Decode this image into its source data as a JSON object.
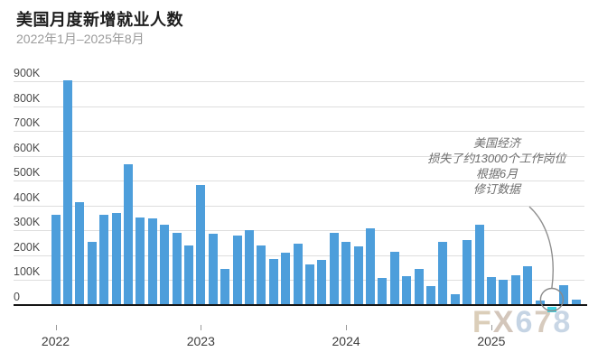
{
  "header": {
    "title": "美国月度新增就业人数",
    "subtitle": "2022年1月–2025年8月"
  },
  "annotation": {
    "lines": [
      "美国经济",
      "损失了约13000个工作岗位",
      "根据6月",
      "修订数据"
    ]
  },
  "watermark": {
    "text": "FX678"
  },
  "colors": {
    "bar": "#4d9edb",
    "highlight": "#3fd2e2",
    "axis": "#161616",
    "grid": "#dedede"
  },
  "chart_data": {
    "type": "bar",
    "title": "美国月度新增就业人数",
    "subtitle": "2022年1月–2025年8月",
    "unit": "jobs, thousands (K)",
    "x": [
      "2022-01",
      "2022-02",
      "2022-03",
      "2022-04",
      "2022-05",
      "2022-06",
      "2022-07",
      "2022-08",
      "2022-09",
      "2022-10",
      "2022-11",
      "2022-12",
      "2023-01",
      "2023-02",
      "2023-03",
      "2023-04",
      "2023-05",
      "2023-06",
      "2023-07",
      "2023-08",
      "2023-09",
      "2023-10",
      "2023-11",
      "2023-12",
      "2024-01",
      "2024-02",
      "2024-03",
      "2024-04",
      "2024-05",
      "2024-06",
      "2024-07",
      "2024-08",
      "2024-09",
      "2024-10",
      "2024-11",
      "2024-12",
      "2025-01",
      "2025-02",
      "2025-03",
      "2025-04",
      "2025-05",
      "2025-06",
      "2025-07",
      "2025-08"
    ],
    "values": [
      364,
      904,
      414,
      254,
      364,
      370,
      568,
      352,
      350,
      324,
      290,
      239,
      482,
      287,
      146,
      278,
      303,
      240,
      184,
      210,
      246,
      165,
      182,
      290,
      256,
      236,
      310,
      108,
      216,
      118,
      144,
      78,
      255,
      44,
      261,
      323,
      111,
      102,
      120,
      158,
      19,
      -13,
      79,
      22
    ],
    "y_ticks": [
      "900K",
      "800K",
      "700K",
      "600K",
      "500K",
      "400K",
      "300K",
      "200K",
      "100K",
      "0"
    ],
    "x_ticks": [
      "2022",
      "2023",
      "2024",
      "2025"
    ],
    "ylim": [
      0,
      900
    ],
    "grid": true,
    "legend": false,
    "highlight": {
      "month": "2025-06",
      "value_k": -13
    }
  }
}
